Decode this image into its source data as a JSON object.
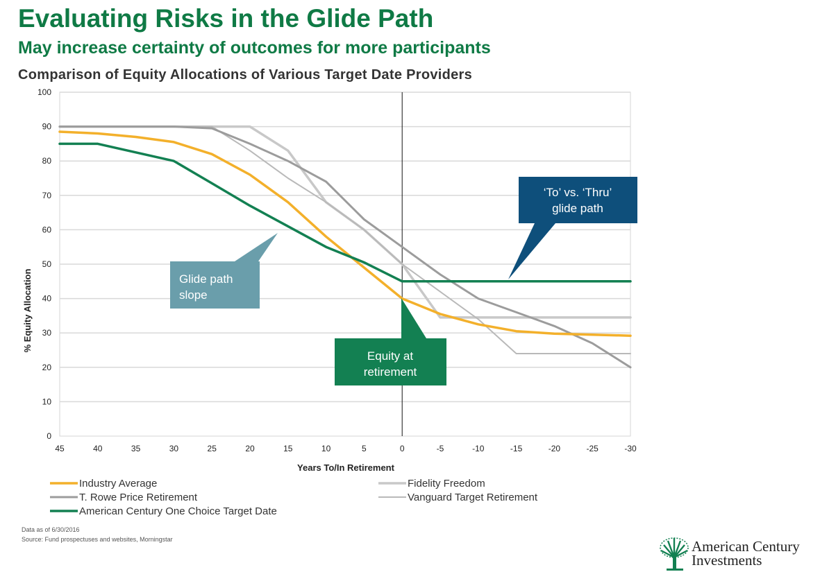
{
  "header": {
    "title": "Evaluating Risks in the Glide Path",
    "subtitle": "May increase certainty of outcomes for more participants"
  },
  "chart_data": {
    "type": "line",
    "title": "Comparison of Equity Allocations of Various Target Date Providers",
    "xlabel": "Years To/In Retirement",
    "ylabel": "% Equity Allocation",
    "x": [
      45,
      40,
      35,
      30,
      25,
      20,
      15,
      10,
      5,
      0,
      -5,
      -10,
      -15,
      -20,
      -25,
      -30
    ],
    "x_ticks": [
      "45",
      "40",
      "35",
      "30",
      "25",
      "20",
      "15",
      "10",
      "5",
      "0",
      "-5",
      "-10",
      "-15",
      "-20",
      "-25",
      "-30"
    ],
    "xlim": [
      45,
      -30
    ],
    "ylim": [
      0,
      100
    ],
    "y_ticks": [
      0,
      10,
      20,
      30,
      40,
      50,
      60,
      70,
      80,
      90,
      100
    ],
    "grid": true,
    "legend": "bottom",
    "series": [
      {
        "name": "Fidelity Freedom",
        "color": "#c8c8c8",
        "width": 3.5,
        "values": [
          90,
          90,
          90,
          90,
          90,
          90,
          83,
          68,
          60,
          50,
          34.5,
          34.5,
          34.5,
          34.5,
          34.5,
          34.5
        ]
      },
      {
        "name": "Vanguard Target Retirement",
        "color": "#b9b9b9",
        "width": 2,
        "values": [
          90,
          90,
          90,
          90,
          90,
          83,
          75,
          68,
          60,
          50,
          42,
          34,
          24,
          24,
          24,
          24
        ]
      },
      {
        "name": "T. Rowe Price Retirement",
        "color": "#9c9c9c",
        "width": 3,
        "values": [
          90,
          90,
          90,
          90,
          89.5,
          85,
          80,
          74,
          63,
          55,
          47,
          40,
          36,
          32,
          27,
          20
        ]
      },
      {
        "name": "Industry Average",
        "color": "#f3b02b",
        "width": 3.5,
        "values": [
          88.5,
          88,
          87,
          85.5,
          82,
          76,
          68,
          58,
          49,
          40,
          35.5,
          32.5,
          30.5,
          29.8,
          29.5,
          29.2
        ]
      },
      {
        "name": "American Century One Choice Target Date",
        "color": "#138052",
        "width": 3.5,
        "values": [
          85,
          85,
          82.5,
          80,
          73.5,
          67,
          61,
          55,
          50.5,
          45,
          45,
          45,
          45,
          45,
          45,
          45
        ]
      }
    ],
    "annotations": [
      {
        "text": [
          "Glide path",
          "slope"
        ],
        "color": "#6a9eab"
      },
      {
        "text": [
          "‘To’ vs. ‘Thru’",
          "glide path"
        ],
        "color": "#0e4f7b"
      },
      {
        "text": [
          "Equity at",
          "retirement"
        ],
        "color": "#138052"
      }
    ]
  },
  "legend": {
    "left": [
      "Industry Average",
      "T. Rowe Price Retirement",
      "American Century One Choice Target Date"
    ],
    "right": [
      "Fidelity Freedom",
      "Vanguard Target Retirement"
    ]
  },
  "source": {
    "line1": "Data as of 6/30/2016",
    "line2": "Source: Fund prospectuses and websites, Morningstar"
  },
  "logo": {
    "line1": "American Century",
    "line2": "Investments",
    "icon": "tree-icon"
  }
}
